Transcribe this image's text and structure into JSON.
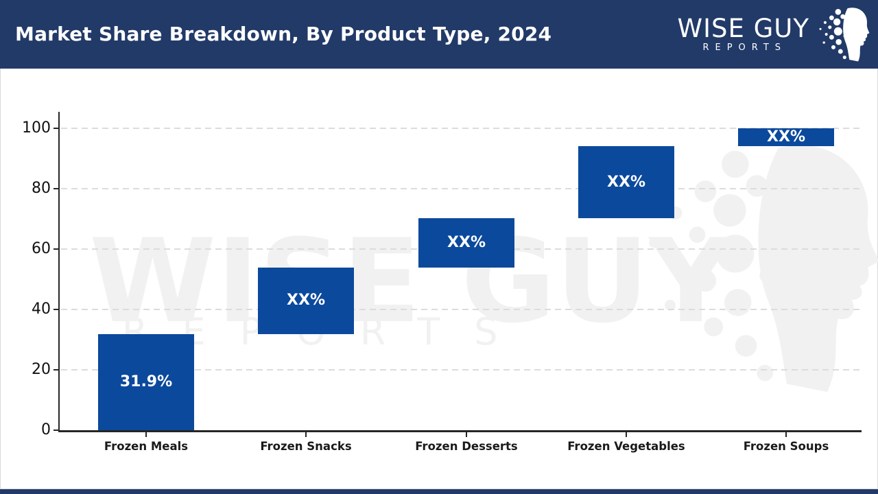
{
  "header": {
    "title": "Market Share Breakdown, By Product Type, 2024",
    "background_color": "#223a68",
    "logo": {
      "line1": "WISE GUY",
      "line2": "REPORTS"
    }
  },
  "watermark": {
    "line1": "WISE GUY",
    "line2": "REPORTS",
    "color": "#f1f1f1"
  },
  "footer": {
    "background_color": "#223a68"
  },
  "chart_data": {
    "type": "bar",
    "subtype": "waterfall",
    "title": "Market Share Breakdown, By Product Type, 2024",
    "xlabel": "",
    "ylabel": "",
    "categories": [
      "Frozen Meals",
      "Frozen Snacks",
      "Frozen Desserts",
      "Frozen Vegetables",
      "Frozen Soups"
    ],
    "segments": [
      {
        "category": "Frozen Meals",
        "start": 0,
        "end": 31.9,
        "label": "31.9%"
      },
      {
        "category": "Frozen Snacks",
        "start": 31.9,
        "end": 53.9,
        "label": "XX%"
      },
      {
        "category": "Frozen Desserts",
        "start": 53.9,
        "end": 70.2,
        "label": "XX%"
      },
      {
        "category": "Frozen Vegetables",
        "start": 70.2,
        "end": 94.1,
        "label": "XX%"
      },
      {
        "category": "Frozen Soups",
        "start": 94.1,
        "end": 100,
        "label": "XX%"
      }
    ],
    "yticks": [
      0,
      20,
      40,
      60,
      80,
      100
    ],
    "ylim": [
      0,
      105
    ],
    "bar_color": "#0b499c",
    "grid": "horizontal dashed",
    "grid_color": "#dcdcdc",
    "legend": "none"
  }
}
